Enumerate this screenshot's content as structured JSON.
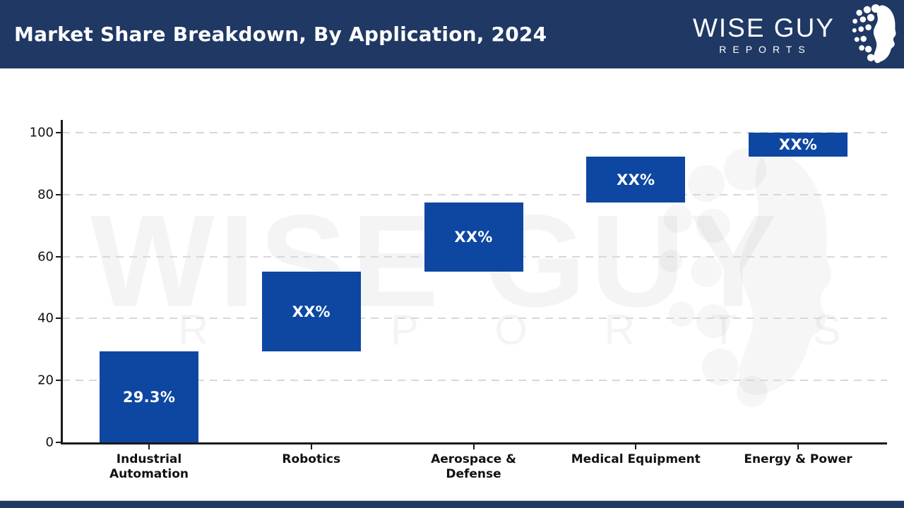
{
  "header": {
    "title": "Market Share Breakdown, By Application, 2024",
    "logo": {
      "line1": "WISE GUY",
      "line2": "REPORTS"
    }
  },
  "watermark": {
    "line1": "WISE GUY",
    "line2": "REPORTS"
  },
  "chart_data": {
    "type": "bar",
    "subtype": "waterfall",
    "title": "Market Share Breakdown, By Application, 2024",
    "xlabel": "",
    "ylabel": "",
    "ylim": [
      0,
      105
    ],
    "yticks": [
      0,
      20,
      40,
      60,
      80,
      100
    ],
    "grid": "horizontal-dashed",
    "legend": "none",
    "bar_color": "#0d47a1",
    "value_label_color": "#ffffff",
    "categories": [
      "Industrial Automation",
      "Robotics",
      "Aerospace & Defense",
      "Medical Equipment",
      "Energy & Power"
    ],
    "category_lines": [
      [
        "Industrial",
        "Automation"
      ],
      [
        "Robotics"
      ],
      [
        "Aerospace &",
        "Defense"
      ],
      [
        "Medical Equipment"
      ],
      [
        "Energy & Power"
      ]
    ],
    "bars": [
      {
        "category": "Industrial Automation",
        "start": 0,
        "end": 29.3,
        "label": "29.3%"
      },
      {
        "category": "Robotics",
        "start": 29.3,
        "end": 55.2,
        "label": "XX%"
      },
      {
        "category": "Aerospace & Defense",
        "start": 55.2,
        "end": 77.4,
        "label": "XX%"
      },
      {
        "category": "Medical Equipment",
        "start": 77.4,
        "end": 92.2,
        "label": "XX%"
      },
      {
        "category": "Energy & Power",
        "start": 92.2,
        "end": 100,
        "label": "XX%"
      }
    ]
  },
  "colors": {
    "header_bg": "#1f3864",
    "footer_bg": "#1f3864",
    "bar": "#0d47a1",
    "axis": "#1a1a1a",
    "grid": "#d8d8d8"
  }
}
